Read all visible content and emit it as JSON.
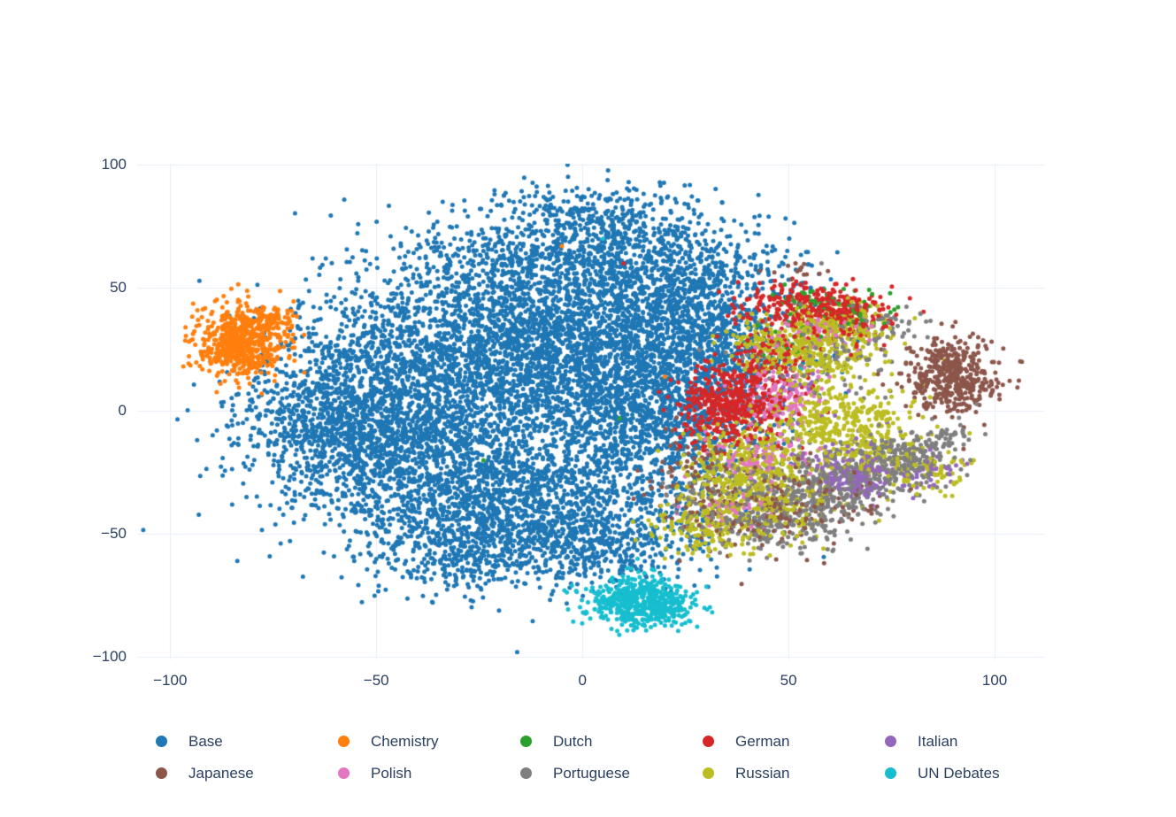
{
  "figure": {
    "background": "#ffffff",
    "text_color": "#2a3f5f",
    "grid_color": "#e9eef6"
  },
  "chart_data": {
    "type": "scatter",
    "title": "",
    "xlabel": "",
    "ylabel": "",
    "grid": true,
    "legend_position": "bottom",
    "xlim": [
      -108,
      112
    ],
    "ylim": [
      -101,
      100.5
    ],
    "xticks": [
      -100,
      -50,
      0,
      50,
      100
    ],
    "xtick_labels": [
      "−100",
      "−50",
      "0",
      "50",
      "100"
    ],
    "yticks": [
      -100,
      -50,
      0,
      50,
      100
    ],
    "ytick_labels": [
      "−100",
      "−50",
      "0",
      "50",
      "100"
    ],
    "marker_diameter_px": 5,
    "series": [
      {
        "name": "Base",
        "color": "#1f77b4",
        "clusters": [
          {
            "cx": -30,
            "cy": 18,
            "sx": 22,
            "sy": 18,
            "n": 1900
          },
          {
            "cx": -48,
            "cy": -15,
            "sx": 16,
            "sy": 15,
            "n": 1200
          },
          {
            "cx": -12,
            "cy": -35,
            "sx": 20,
            "sy": 15,
            "n": 1500
          },
          {
            "cx": 2,
            "cy": 22,
            "sx": 20,
            "sy": 18,
            "n": 1700
          },
          {
            "cx": -5,
            "cy": 58,
            "sx": 22,
            "sy": 13,
            "n": 1100
          },
          {
            "cx": 24,
            "cy": 48,
            "sx": 13,
            "sy": 14,
            "n": 700
          },
          {
            "cx": 20,
            "cy": -2,
            "sx": 13,
            "sy": 14,
            "n": 800
          },
          {
            "cx": -62,
            "cy": 2,
            "sx": 11,
            "sy": 12,
            "n": 450
          },
          {
            "cx": -28,
            "cy": -55,
            "sx": 14,
            "sy": 9,
            "n": 450
          },
          {
            "cx": 3,
            "cy": 78,
            "sx": 11,
            "sy": 7,
            "n": 250
          },
          {
            "cx": 33,
            "cy": 25,
            "sx": 8,
            "sy": 12,
            "n": 300
          },
          {
            "cx": 5,
            "cy": -55,
            "sx": 12,
            "sy": 8,
            "n": 300
          }
        ],
        "outliers": []
      },
      {
        "name": "Chemistry",
        "color": "#ff7f0e",
        "clusters": [
          {
            "cx": -83,
            "cy": 28,
            "sx": 5.5,
            "sy": 7,
            "n": 620
          },
          {
            "cx": -76,
            "cy": 38,
            "sx": 3,
            "sy": 3,
            "n": 60
          }
        ],
        "outliers": [
          [
            -5,
            67
          ],
          [
            20,
            14
          ]
        ]
      },
      {
        "name": "Dutch",
        "color": "#2ca02c",
        "clusters": [
          {
            "cx": 59,
            "cy": 44,
            "sx": 6,
            "sy": 3.5,
            "n": 55
          },
          {
            "cx": 66,
            "cy": 38,
            "sx": 4,
            "sy": 3,
            "n": 25
          },
          {
            "cx": 50,
            "cy": 30,
            "sx": 4,
            "sy": 4,
            "n": 15
          }
        ],
        "outliers": [
          [
            -24,
            -20
          ],
          [
            9,
            -3
          ],
          [
            47,
            3
          ]
        ]
      },
      {
        "name": "German",
        "color": "#d62728",
        "clusters": [
          {
            "cx": 36,
            "cy": 2,
            "sx": 6.5,
            "sy": 8,
            "n": 430
          },
          {
            "cx": 55,
            "cy": 43,
            "sx": 8,
            "sy": 4.5,
            "n": 270
          },
          {
            "cx": 46,
            "cy": 22,
            "sx": 6,
            "sy": 7,
            "n": 130
          },
          {
            "cx": 66,
            "cy": 36,
            "sx": 5,
            "sy": 4,
            "n": 80
          }
        ],
        "outliers": [
          [
            10,
            60
          ],
          [
            43,
            52
          ]
        ]
      },
      {
        "name": "Italian",
        "color": "#9467bd",
        "clusters": [
          {
            "cx": 66,
            "cy": -27,
            "sx": 4.5,
            "sy": 4,
            "n": 150
          },
          {
            "cx": 58,
            "cy": -17,
            "sx": 9,
            "sy": 7,
            "n": 60
          },
          {
            "cx": 82,
            "cy": -24,
            "sx": 4,
            "sy": 4,
            "n": 40
          },
          {
            "cx": 50,
            "cy": 8,
            "sx": 5,
            "sy": 6,
            "n": 25
          }
        ],
        "outliers": [
          [
            72,
            30
          ]
        ]
      },
      {
        "name": "Japanese",
        "color": "#8c564b",
        "clusters": [
          {
            "cx": 90,
            "cy": 14,
            "sx": 5.5,
            "sy": 7.5,
            "n": 430
          },
          {
            "cx": 46,
            "cy": -38,
            "sx": 13,
            "sy": 9,
            "n": 230
          },
          {
            "cx": 53,
            "cy": 56,
            "sx": 3.5,
            "sy": 2,
            "n": 15
          },
          {
            "cx": 30,
            "cy": -20,
            "sx": 6,
            "sy": 8,
            "n": 60
          }
        ],
        "outliers": [
          [
            96,
            30
          ]
        ]
      },
      {
        "name": "Polish",
        "color": "#e377c2",
        "clusters": [
          {
            "cx": 48,
            "cy": 6,
            "sx": 5.5,
            "sy": 8,
            "n": 130
          },
          {
            "cx": 44,
            "cy": -19,
            "sx": 7,
            "sy": 5,
            "n": 80
          },
          {
            "cx": 56,
            "cy": 31,
            "sx": 5,
            "sy": 4,
            "n": 45
          },
          {
            "cx": 36,
            "cy": -40,
            "sx": 6,
            "sy": 4,
            "n": 35
          },
          {
            "cx": 67,
            "cy": 33,
            "sx": 3,
            "sy": 2.5,
            "n": 15
          }
        ],
        "outliers": []
      },
      {
        "name": "Portuguese",
        "color": "#7f7f7f",
        "clusters": [
          {
            "cx": 62,
            "cy": -30,
            "sx": 9,
            "sy": 7,
            "n": 380
          },
          {
            "cx": 79,
            "cy": -19,
            "sx": 6,
            "sy": 5.5,
            "n": 200
          },
          {
            "cx": 48,
            "cy": -46,
            "sx": 9,
            "sy": 6,
            "n": 200
          },
          {
            "cx": 34,
            "cy": -35,
            "sx": 7,
            "sy": 7,
            "n": 110
          },
          {
            "cx": 58,
            "cy": 22,
            "sx": 10,
            "sy": 9,
            "n": 90
          },
          {
            "cx": 73,
            "cy": 35,
            "sx": 5,
            "sy": 4,
            "n": 40
          },
          {
            "cx": 88,
            "cy": -10,
            "sx": 4,
            "sy": 4,
            "n": 40
          }
        ],
        "outliers": [
          [
            58,
            60
          ]
        ]
      },
      {
        "name": "Russian",
        "color": "#bcbd22",
        "clusters": [
          {
            "cx": 55,
            "cy": 26,
            "sx": 9,
            "sy": 7,
            "n": 430
          },
          {
            "cx": 42,
            "cy": -28,
            "sx": 9,
            "sy": 11,
            "n": 520
          },
          {
            "cx": 62,
            "cy": -3,
            "sx": 9,
            "sy": 7,
            "n": 300
          },
          {
            "cx": 71,
            "cy": -17,
            "sx": 7,
            "sy": 6,
            "n": 150
          },
          {
            "cx": 30,
            "cy": -48,
            "sx": 7,
            "sy": 6,
            "n": 150
          },
          {
            "cx": 62,
            "cy": 36,
            "sx": 6,
            "sy": 4,
            "n": 120
          },
          {
            "cx": 85,
            "cy": -25,
            "sx": 5,
            "sy": 4,
            "n": 60
          }
        ],
        "outliers": [
          [
            20,
            -60
          ]
        ]
      },
      {
        "name": "UN Debates",
        "color": "#17becf",
        "clusters": [
          {
            "cx": 14,
            "cy": -78,
            "sx": 6.5,
            "sy": 5,
            "n": 560
          }
        ],
        "outliers": [
          [
            5,
            70
          ],
          [
            53,
            17
          ]
        ]
      }
    ]
  }
}
